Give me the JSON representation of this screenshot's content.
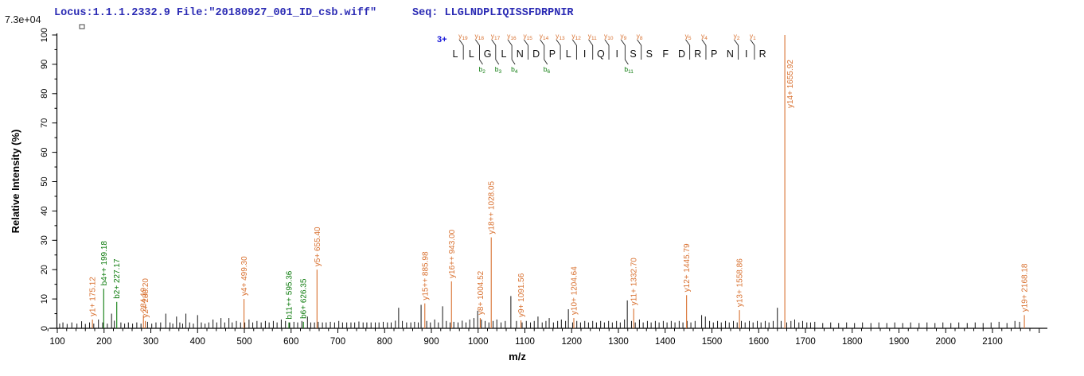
{
  "header": {
    "locus_file": "Locus:1.1.1.2332.9 File:\"20180927_001_ID_csb.wiff\"",
    "seq": "Seq: LLGLNDPLIQISSFDRPNIR",
    "max_intensity": "7.3e+04"
  },
  "colors": {
    "y_ion": "#d8702f",
    "b_ion": "#0b7a0b",
    "noise": "#151515",
    "header_text": "#2b2bb4",
    "charge_blue": "#1515d8",
    "axis": "#000000"
  },
  "peptide": {
    "charge_label": "3+",
    "sequence": "LLGLNDPLIQISSFDRPNIR",
    "residues": [
      "L",
      "L",
      "G",
      "L",
      "N",
      "D",
      "P",
      "L",
      "I",
      "Q",
      "I",
      "S",
      "S",
      "F",
      "D",
      "R",
      "P",
      "N",
      "I",
      "R"
    ],
    "y_ion_marks": [
      {
        "t": "y",
        "n": 19,
        "gap": 1
      },
      {
        "t": "y",
        "n": 18,
        "gap": 2
      },
      {
        "t": "y",
        "n": 17,
        "gap": 3
      },
      {
        "t": "y",
        "n": 16,
        "gap": 4
      },
      {
        "t": "y",
        "n": 15,
        "gap": 5
      },
      {
        "t": "y",
        "n": 14,
        "gap": 6
      },
      {
        "t": "y",
        "n": 13,
        "gap": 7
      },
      {
        "t": "y",
        "n": 12,
        "gap": 8
      },
      {
        "t": "y",
        "n": 11,
        "gap": 9
      },
      {
        "t": "y",
        "n": 10,
        "gap": 10
      },
      {
        "t": "y",
        "n": 9,
        "gap": 11
      },
      {
        "t": "y",
        "n": 8,
        "gap": 12
      },
      {
        "t": "y",
        "n": 5,
        "gap": 15
      },
      {
        "t": "y",
        "n": 4,
        "gap": 16
      },
      {
        "t": "y",
        "n": 2,
        "gap": 18
      },
      {
        "t": "y",
        "n": 1,
        "gap": 19
      }
    ],
    "b_ion_marks": [
      {
        "t": "b",
        "n": 2,
        "gap": 2
      },
      {
        "t": "b",
        "n": 3,
        "gap": 3
      },
      {
        "t": "b",
        "n": 4,
        "gap": 4
      },
      {
        "t": "b",
        "n": 6,
        "gap": 6
      },
      {
        "t": "b",
        "n": 11,
        "gap": 11
      }
    ]
  },
  "chart_data": {
    "type": "bar",
    "title": "Locus:1.1.1.2332.9 File:\"20180927_001_ID_csb.wiff\"  Seq: LLGLNDPLIQISSFDRPNIR",
    "xlabel": "m/z",
    "ylabel": "Relative  Intensity (%)",
    "y_full_scale_counts": "7.3e+04",
    "precursor_charge": "3+",
    "xlim": [
      80,
      2217
    ],
    "ylim": [
      0,
      100
    ],
    "x_ticks": [
      100,
      200,
      300,
      400,
      500,
      600,
      700,
      800,
      900,
      1000,
      1100,
      1200,
      1300,
      1400,
      1500,
      1600,
      1700,
      1800,
      1900,
      2000,
      2100
    ],
    "x_minor_step": 20,
    "y_ticks": [
      0,
      10,
      20,
      30,
      40,
      50,
      60,
      70,
      80,
      90,
      100
    ],
    "y_minor_step": 5,
    "grid": false,
    "legend": "none",
    "series": [
      {
        "name": "y ions",
        "color": "#d8702f",
        "points": [
          {
            "mz": 175.12,
            "pct": 3,
            "label": "y1+ 175.12"
          },
          {
            "mz": 288.2,
            "pct": 2.5,
            "label": "y2+ 288.20"
          },
          {
            "mz": 499.3,
            "pct": 10,
            "label": "y4+ 499.30"
          },
          {
            "mz": 655.4,
            "pct": 20,
            "label": "y5+ 655.40"
          },
          {
            "mz": 885.98,
            "pct": 8.5,
            "label": "y15++ 885.98"
          },
          {
            "mz": 943.0,
            "pct": 16,
            "label": "y16++ 943.00"
          },
          {
            "mz": 1004.52,
            "pct": 3.5,
            "label": "y8+ 1004.52"
          },
          {
            "mz": 1028.05,
            "pct": 31,
            "label": "y18++ 1028.05"
          },
          {
            "mz": 1091.56,
            "pct": 2.7,
            "label": "y9+ 1091.56"
          },
          {
            "mz": 1204.64,
            "pct": 3.5,
            "label": "y10+ 1204.64"
          },
          {
            "mz": 1332.7,
            "pct": 6.7,
            "label": "y11+ 1332.70"
          },
          {
            "mz": 1445.79,
            "pct": 11.3,
            "label": "y12+ 1445.79"
          },
          {
            "mz": 1558.86,
            "pct": 6.2,
            "label": "y13+ 1558.86"
          },
          {
            "mz": 1655.92,
            "pct": 100,
            "label": "y14+ 1655.92"
          },
          {
            "mz": 2168.18,
            "pct": 4.5,
            "label": "y19+ 2168.18"
          }
        ]
      },
      {
        "name": "b ions",
        "color": "#0b7a0b",
        "points": [
          {
            "mz": 199.18,
            "pct": 13.5,
            "label": "b4++ 199.18"
          },
          {
            "mz": 227.17,
            "pct": 9,
            "label": "b2+ 227.17"
          },
          {
            "mz": 595.36,
            "pct": 2,
            "label": "b11++ 595.36"
          },
          {
            "mz": 626.35,
            "pct": 2.2,
            "label": "b6+ 626.35"
          }
        ]
      },
      {
        "name": "unassigned labeled",
        "color": "#d8702f",
        "points": [
          {
            "mz": 284.19,
            "pct": 4.5,
            "label": "284.19"
          }
        ]
      },
      {
        "name": "unassigned",
        "color": "#151515",
        "points": [
          [
            105,
            1.6
          ],
          [
            112,
            2
          ],
          [
            121,
            1.5
          ],
          [
            131,
            2
          ],
          [
            142,
            1.6
          ],
          [
            152,
            2.4
          ],
          [
            160,
            1.5
          ],
          [
            169,
            2
          ],
          [
            178,
            1.6
          ],
          [
            188,
            3
          ],
          [
            197,
            2
          ],
          [
            207,
            1.6
          ],
          [
            216,
            5
          ],
          [
            222,
            2.6
          ],
          [
            236,
            2
          ],
          [
            244,
            1.6
          ],
          [
            252,
            2
          ],
          [
            261,
            1.6
          ],
          [
            270,
            2
          ],
          [
            279,
            1.6
          ],
          [
            293,
            2.2
          ],
          [
            302,
            1.6
          ],
          [
            311,
            2
          ],
          [
            321,
            2
          ],
          [
            332,
            5
          ],
          [
            341,
            2
          ],
          [
            347,
            1.6
          ],
          [
            355,
            4
          ],
          [
            362,
            2
          ],
          [
            368,
            1.6
          ],
          [
            375,
            5
          ],
          [
            383,
            2
          ],
          [
            391,
            1.6
          ],
          [
            400,
            4.5
          ],
          [
            408,
            2
          ],
          [
            416,
            1.6
          ],
          [
            424,
            2
          ],
          [
            433,
            3
          ],
          [
            441,
            2
          ],
          [
            450,
            3.5
          ],
          [
            458,
            2
          ],
          [
            467,
            3.5
          ],
          [
            474,
            2
          ],
          [
            483,
            2.5
          ],
          [
            492,
            2
          ],
          [
            501,
            2
          ],
          [
            510,
            3
          ],
          [
            518,
            2
          ],
          [
            527,
            2.5
          ],
          [
            536,
            2
          ],
          [
            545,
            2.5
          ],
          [
            553,
            2
          ],
          [
            562,
            2.5
          ],
          [
            570,
            2
          ],
          [
            579,
            3
          ],
          [
            588,
            2.5
          ],
          [
            597,
            2
          ],
          [
            606,
            2.2
          ],
          [
            614,
            2
          ],
          [
            623,
            2.5
          ],
          [
            635,
            4
          ],
          [
            642,
            2
          ],
          [
            650,
            2
          ],
          [
            658,
            2.2
          ],
          [
            667,
            2
          ],
          [
            675,
            2
          ],
          [
            684,
            2.2
          ],
          [
            693,
            2
          ],
          [
            702,
            2.5
          ],
          [
            710,
            2
          ],
          [
            719,
            2
          ],
          [
            728,
            2
          ],
          [
            736,
            2
          ],
          [
            745,
            2.3
          ],
          [
            754,
            2
          ],
          [
            762,
            2
          ],
          [
            771,
            2
          ],
          [
            780,
            2
          ],
          [
            788,
            2
          ],
          [
            797,
            2.2
          ],
          [
            806,
            2
          ],
          [
            814,
            2
          ],
          [
            823,
            2.6
          ],
          [
            830,
            7
          ],
          [
            838,
            2.5
          ],
          [
            847,
            2
          ],
          [
            856,
            2
          ],
          [
            864,
            2.2
          ],
          [
            872,
            2
          ],
          [
            878,
            8
          ],
          [
            890,
            2.5
          ],
          [
            898,
            2
          ],
          [
            907,
            3
          ],
          [
            915,
            2
          ],
          [
            924,
            7.5
          ],
          [
            932,
            2.5
          ],
          [
            940,
            2
          ],
          [
            948,
            2.2
          ],
          [
            957,
            2
          ],
          [
            966,
            2.6
          ],
          [
            974,
            2
          ],
          [
            982,
            3
          ],
          [
            991,
            3.5
          ],
          [
            999,
            6
          ],
          [
            1007,
            3
          ],
          [
            1015,
            2.5
          ],
          [
            1023,
            2
          ],
          [
            1032,
            2.5
          ],
          [
            1040,
            3
          ],
          [
            1049,
            2
          ],
          [
            1058,
            2.5
          ],
          [
            1070,
            11
          ],
          [
            1082,
            2.5
          ],
          [
            1094,
            2
          ],
          [
            1103,
            2.5
          ],
          [
            1112,
            2
          ],
          [
            1120,
            2.5
          ],
          [
            1128,
            4
          ],
          [
            1137,
            2
          ],
          [
            1145,
            2.5
          ],
          [
            1152,
            3.5
          ],
          [
            1161,
            2
          ],
          [
            1170,
            2.5
          ],
          [
            1178,
            3
          ],
          [
            1187,
            2.5
          ],
          [
            1193,
            6.5
          ],
          [
            1202,
            2
          ],
          [
            1211,
            2.5
          ],
          [
            1219,
            2
          ],
          [
            1228,
            2.5
          ],
          [
            1236,
            2
          ],
          [
            1245,
            2.5
          ],
          [
            1253,
            2
          ],
          [
            1262,
            2.5
          ],
          [
            1270,
            2
          ],
          [
            1279,
            2.5
          ],
          [
            1287,
            2
          ],
          [
            1296,
            2.5
          ],
          [
            1304,
            2
          ],
          [
            1313,
            3
          ],
          [
            1319,
            9.5
          ],
          [
            1328,
            2.5
          ],
          [
            1336,
            2
          ],
          [
            1345,
            3
          ],
          [
            1353,
            2
          ],
          [
            1362,
            2.5
          ],
          [
            1370,
            2
          ],
          [
            1379,
            2.5
          ],
          [
            1387,
            2
          ],
          [
            1396,
            2.5
          ],
          [
            1404,
            2
          ],
          [
            1413,
            2.5
          ],
          [
            1421,
            2
          ],
          [
            1430,
            2.5
          ],
          [
            1438,
            2
          ],
          [
            1447,
            2.5
          ],
          [
            1455,
            2
          ],
          [
            1464,
            2.5
          ],
          [
            1478,
            4.5
          ],
          [
            1486,
            4
          ],
          [
            1495,
            2.5
          ],
          [
            1503,
            2
          ],
          [
            1512,
            2.5
          ],
          [
            1520,
            2
          ],
          [
            1529,
            2.5
          ],
          [
            1537,
            2
          ],
          [
            1546,
            2.5
          ],
          [
            1554,
            2
          ],
          [
            1563,
            2.5
          ],
          [
            1571,
            2
          ],
          [
            1580,
            2.5
          ],
          [
            1588,
            2
          ],
          [
            1597,
            2.5
          ],
          [
            1605,
            2
          ],
          [
            1614,
            2.5
          ],
          [
            1622,
            2
          ],
          [
            1631,
            2.5
          ],
          [
            1640,
            7
          ],
          [
            1648,
            2.5
          ],
          [
            1660,
            2
          ],
          [
            1669,
            2.5
          ],
          [
            1677,
            3
          ],
          [
            1686,
            2
          ],
          [
            1694,
            2.5
          ],
          [
            1703,
            2
          ],
          [
            1711,
            2
          ],
          [
            1720,
            2.2
          ],
          [
            1737,
            1.8
          ],
          [
            1754,
            2
          ],
          [
            1771,
            1.8
          ],
          [
            1788,
            2
          ],
          [
            1805,
            1.8
          ],
          [
            1822,
            2
          ],
          [
            1840,
            1.8
          ],
          [
            1857,
            2
          ],
          [
            1874,
            1.8
          ],
          [
            1891,
            2
          ],
          [
            1908,
            1.8
          ],
          [
            1925,
            2
          ],
          [
            1943,
            1.8
          ],
          [
            1960,
            2
          ],
          [
            1977,
            1.8
          ],
          [
            1994,
            2
          ],
          [
            2011,
            1.8
          ],
          [
            2028,
            2
          ],
          [
            2046,
            1.8
          ],
          [
            2063,
            2
          ],
          [
            2080,
            1.8
          ],
          [
            2097,
            2
          ],
          [
            2114,
            2.2
          ],
          [
            2131,
            1.8
          ],
          [
            2148,
            2.5
          ],
          [
            2158,
            2.2
          ]
        ]
      }
    ]
  }
}
